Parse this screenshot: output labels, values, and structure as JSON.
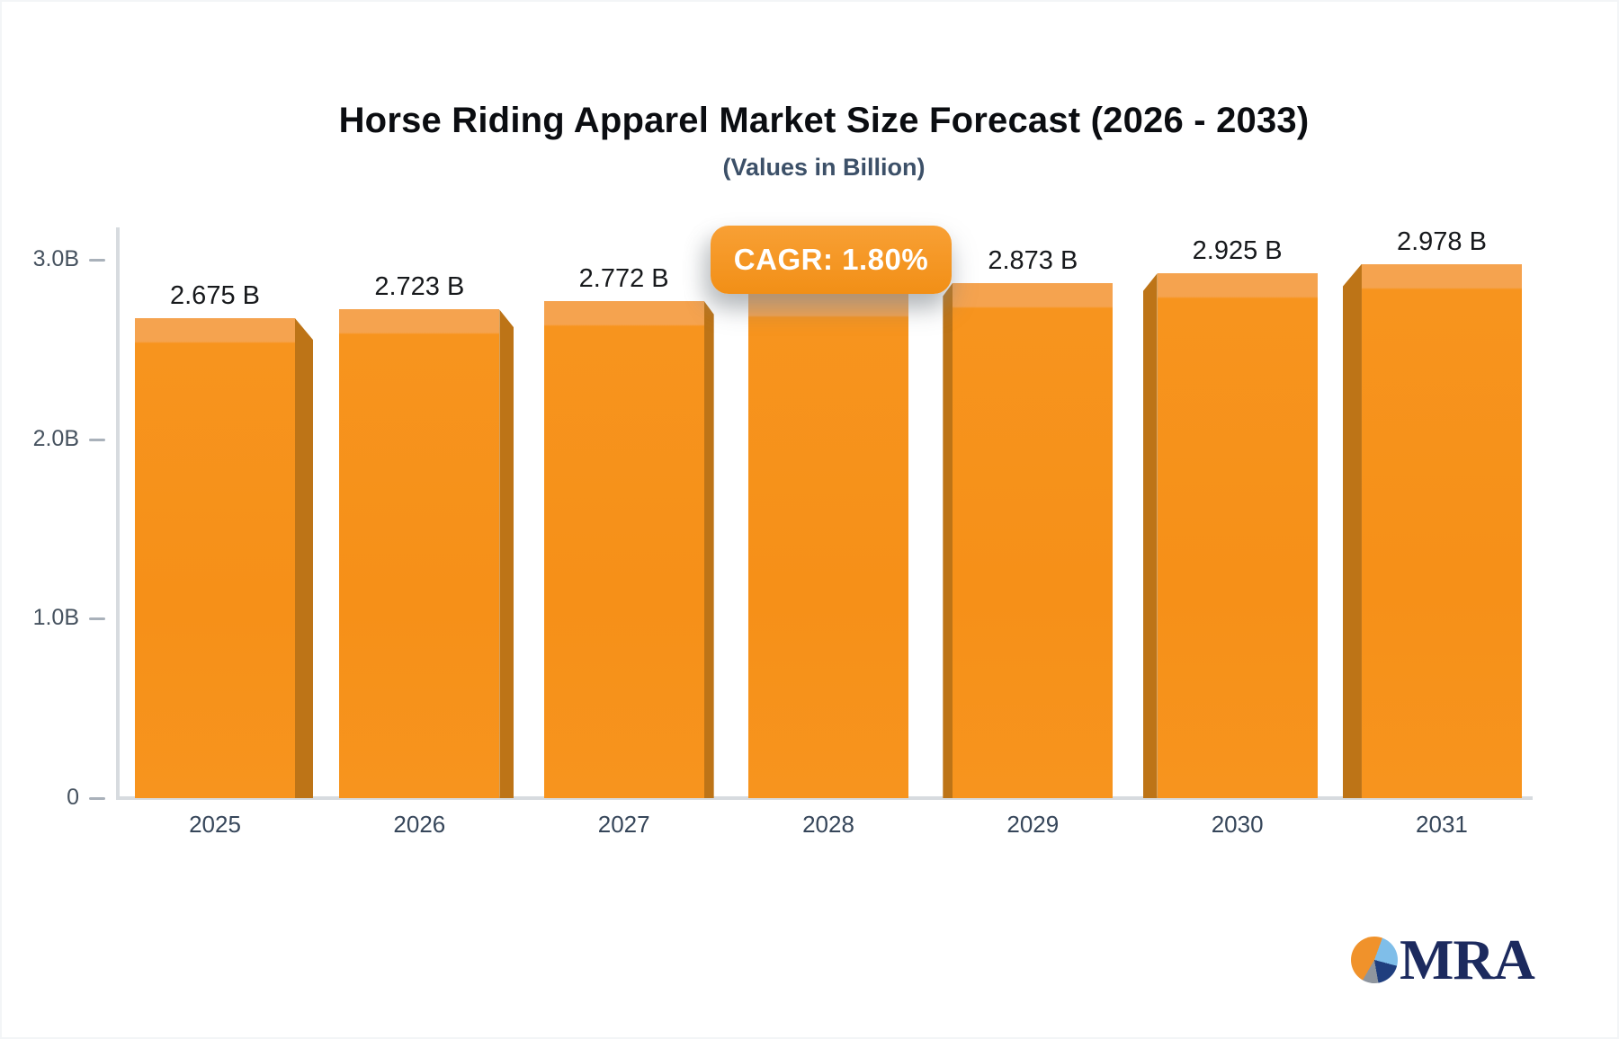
{
  "header": {
    "title": "Horse Riding Apparel Market Size Forecast (2026 - 2033)",
    "subtitle": "(Values in Billion)"
  },
  "badge": {
    "label": "CAGR: 1.80%"
  },
  "chart_data": {
    "type": "bar",
    "title": "Horse Riding Apparel Market Size Forecast (2026 - 2033)",
    "subtitle": "(Values in Billion)",
    "categories": [
      "2025",
      "2026",
      "2027",
      "2028",
      "2029",
      "2030",
      "2031"
    ],
    "values": [
      2.675,
      2.723,
      2.772,
      2.822,
      2.873,
      2.925,
      2.978
    ],
    "bar_labels": [
      "2.675 B",
      "2.723 B",
      "2.772 B",
      "",
      "2.873 B",
      "2.925 B",
      "2.978 B"
    ],
    "hidden_label_note": "2028 bar value label is covered by the CAGR badge; 2.822 estimated from gridlines",
    "annotation": "CAGR: 1.80%",
    "y_ticks": [
      {
        "label": "3.0B",
        "value": 3
      },
      {
        "label": "2.0B",
        "value": 2
      },
      {
        "label": "1.0B",
        "value": 1
      },
      {
        "label": "0",
        "value": 0
      }
    ],
    "ylim": [
      0,
      3.1
    ],
    "xlabel": "",
    "ylabel": "",
    "grid": false,
    "legend": false
  },
  "colors": {
    "bar_face": "#F7941E",
    "bar_face_deep": "#F69018",
    "bar_cap": "#F5A34F",
    "bar_side": "#BD7417",
    "badge_top": "#F8A035",
    "badge_bottom": "#F28F16",
    "axis": "#D7DBDF",
    "tick": "#A9B1BA",
    "title_text": "#0B0D11",
    "subtitle_text": "#3C5068",
    "value_text": "#17191C",
    "x_label_text": "#36465A",
    "y_label_text": "#46525F",
    "logo_navy": "#1C2A5E",
    "logo_orange": "#F0922B",
    "logo_lightblue": "#7FBEE9",
    "logo_blue": "#1F3E7E",
    "logo_gray": "#8E959E"
  },
  "logo": {
    "text": "MRA"
  }
}
